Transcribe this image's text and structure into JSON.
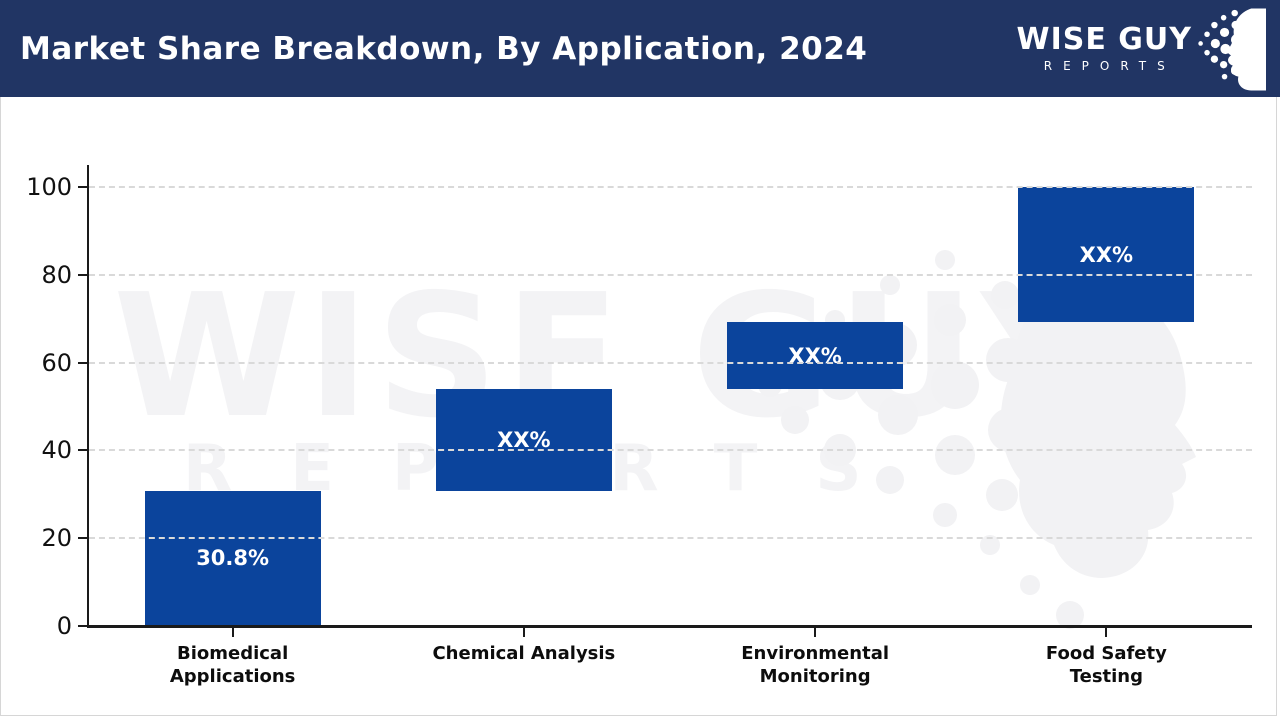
{
  "header": {
    "title": "Market Share Breakdown, By Application, 2024",
    "logo": {
      "wordmark": "WISE GUY",
      "subtext": "REPORTS"
    }
  },
  "watermark": {
    "line1": "WISE GUY",
    "line2": "REPORTS"
  },
  "chart_data": {
    "type": "bar",
    "subtype": "waterfall",
    "title": "Market Share Breakdown, By Application, 2024",
    "categories": [
      "Biomedical Applications",
      "Chemical Analysis",
      "Environmental Monitoring",
      "Food Safety Testing"
    ],
    "category_lines": [
      [
        "Biomedical",
        "Applications"
      ],
      [
        "Chemical Analysis"
      ],
      [
        "Environmental",
        "Monitoring"
      ],
      [
        "Food Safety",
        "Testing"
      ]
    ],
    "segments": [
      {
        "category": "Biomedical Applications",
        "start": 0,
        "end": 30.8
      },
      {
        "category": "Chemical Analysis",
        "start": 30.8,
        "end": 54
      },
      {
        "category": "Environmental Monitoring",
        "start": 54,
        "end": 69.2
      },
      {
        "category": "Food Safety Testing",
        "start": 69.2,
        "end": 100
      }
    ],
    "bar_labels": [
      "30.8%",
      "XX%",
      "XX%",
      "XX%"
    ],
    "yticks": [
      0,
      20,
      40,
      60,
      80,
      100
    ],
    "ylim": [
      0,
      100
    ],
    "grid": "horizontal-dashed",
    "legend": "none",
    "bar_color": "#0b449c",
    "axis_color": "#1a1a1a",
    "grid_color": "#d9d9d9"
  },
  "colors": {
    "header_bg": "#213564",
    "bar": "#0b449c",
    "watermark": "#f3f3f5",
    "border": "#d6d6d6"
  }
}
